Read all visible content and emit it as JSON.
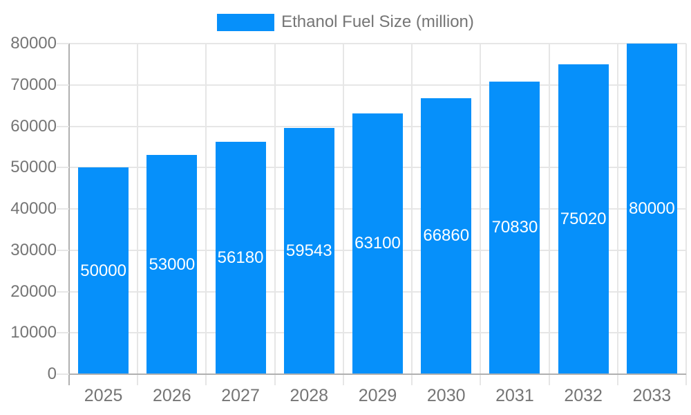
{
  "chart_data": {
    "type": "bar",
    "title": "",
    "xlabel": "",
    "ylabel": "",
    "legend": {
      "label": "Ethanol Fuel Size (million)",
      "position": "top"
    },
    "categories": [
      "2025",
      "2026",
      "2027",
      "2028",
      "2029",
      "2030",
      "2031",
      "2032",
      "2033"
    ],
    "series": [
      {
        "name": "Ethanol Fuel Size (million)",
        "values": [
          50000,
          53000,
          56180,
          59543,
          63100,
          66860,
          70830,
          75020,
          80000
        ]
      }
    ],
    "bar_value_labels": [
      "50000",
      "53000",
      "56180",
      "59543",
      "63100",
      "66860",
      "70830",
      "75020",
      "80000"
    ],
    "ylim": [
      0,
      80000
    ],
    "ytick_interval": 10000,
    "yticks": [
      0,
      10000,
      20000,
      30000,
      40000,
      50000,
      60000,
      70000,
      80000
    ],
    "ytick_labels": [
      "0",
      "10000",
      "20000",
      "30000",
      "40000",
      "50000",
      "60000",
      "70000",
      "80000"
    ],
    "grid": true,
    "value_labels_inside_bars": true
  },
  "colors": {
    "bar": "#0690fa",
    "legend_swatch": "#0690fa",
    "axis_text": "#757575",
    "legend_text": "#757575",
    "grid_line": "#e6e6e6",
    "axis_line": "#b0b0b0",
    "bar_label_text": "#ffffff",
    "background": "#ffffff"
  }
}
